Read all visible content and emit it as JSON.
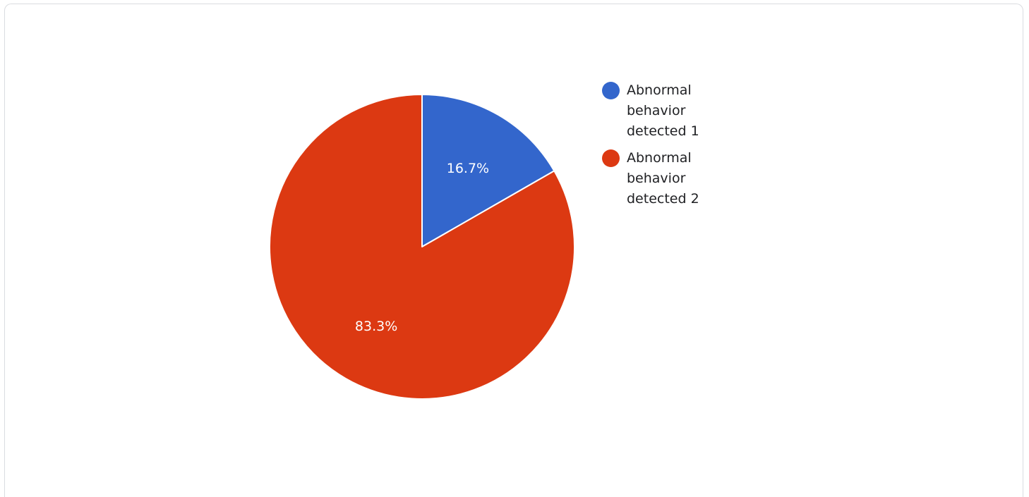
{
  "chart_data": {
    "type": "pie",
    "title": "",
    "legend": "right",
    "slices": [
      {
        "label": "Abnormal behavior detected 1",
        "value": 16.7,
        "display": "16.7%",
        "color": "#3366cc"
      },
      {
        "label": "Abnormal behavior detected 2",
        "value": 83.3,
        "display": "83.3%",
        "color": "#dc3912"
      }
    ]
  }
}
